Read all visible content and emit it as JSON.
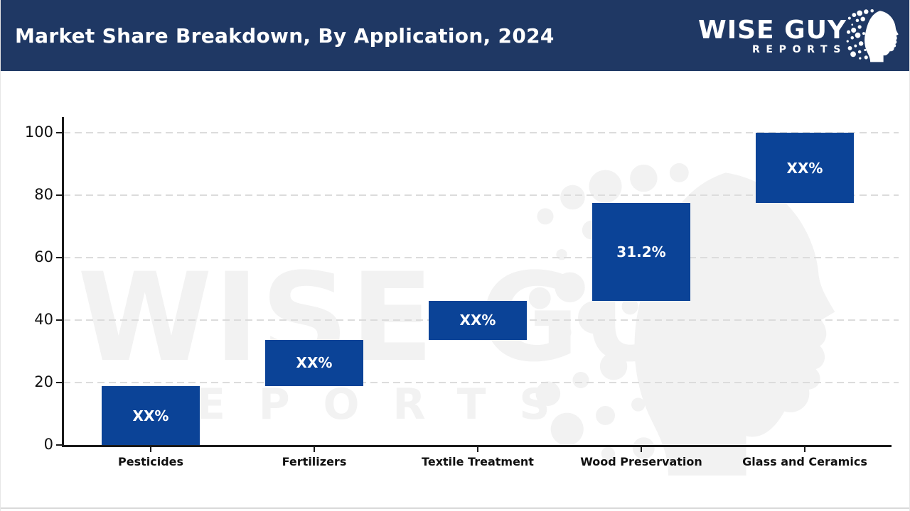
{
  "header": {
    "title": "Market Share Breakdown, By Application, 2024",
    "bg_color": "#1f3864",
    "text_color": "#ffffff",
    "logo": {
      "line1": "WISE GUY",
      "line2": "REPORTS"
    }
  },
  "watermark": {
    "line1": "WISE GUY",
    "line2": "REPORTS",
    "color": "#f2f2f2"
  },
  "chart_data": {
    "type": "bar",
    "subtype": "waterfall",
    "title": "Market Share Breakdown, By Application, 2024",
    "categories": [
      "Pesticides",
      "Fertilizers",
      "Textile Treatment",
      "Wood Preservation",
      "Glass and Ceramics"
    ],
    "segments": [
      {
        "category": "Pesticides",
        "start": 0,
        "end": 18.8,
        "value": 18.8,
        "label": "XX%"
      },
      {
        "category": "Fertilizers",
        "start": 18.8,
        "end": 33.7,
        "value": 14.9,
        "label": "XX%"
      },
      {
        "category": "Textile Treatment",
        "start": 33.7,
        "end": 46.2,
        "value": 12.5,
        "label": "XX%"
      },
      {
        "category": "Wood Preservation",
        "start": 46.2,
        "end": 77.4,
        "value": 31.2,
        "label": "31.2%"
      },
      {
        "category": "Glass and Ceramics",
        "start": 77.4,
        "end": 100,
        "value": 22.6,
        "label": "XX%"
      }
    ],
    "xlabel": "",
    "ylabel": "",
    "ylim": [
      0,
      100
    ],
    "yticks": [
      0,
      20,
      40,
      60,
      80,
      100
    ],
    "grid": "horizontal-dashed",
    "legend": "none",
    "bar_color": "#0b4397",
    "bar_label_color": "#ffffff",
    "axis_color": "#1a1a1a",
    "grid_color": "#dcdcdc"
  }
}
